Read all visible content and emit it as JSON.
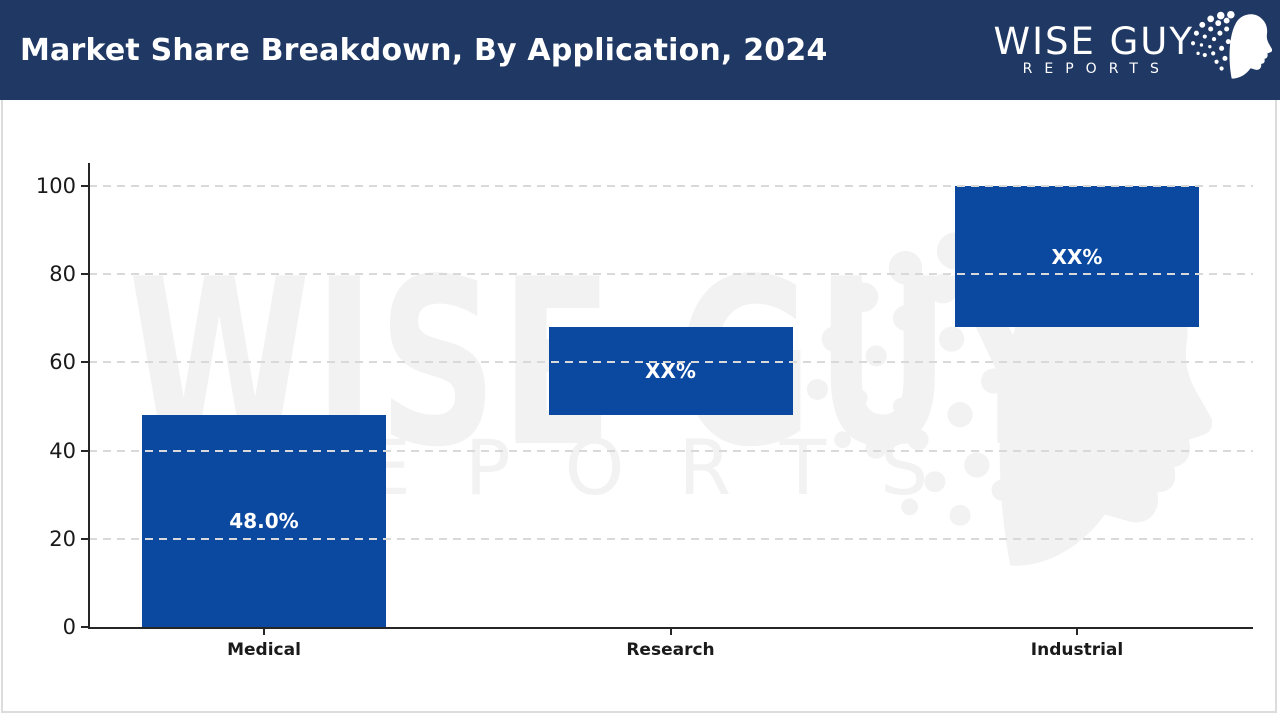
{
  "header": {
    "title": "Market Share Breakdown, By Application, 2024",
    "logo": {
      "line1": "WISE GUY",
      "line2": "REPORTS"
    }
  },
  "watermark": {
    "text": "WISE GUY",
    "subtext": "REPORTS"
  },
  "chart_data": {
    "type": "bar",
    "subtype": "waterfall",
    "title": "Market Share Breakdown, By Application, 2024",
    "categories": [
      "Medical",
      "Research",
      "Industrial"
    ],
    "series": [
      {
        "name": "Market share (%)",
        "segments": [
          {
            "category": "Medical",
            "from": 0,
            "to": 48,
            "label": "48.0%"
          },
          {
            "category": "Research",
            "from": 48,
            "to": 68,
            "label": "XX%"
          },
          {
            "category": "Industrial",
            "from": 68,
            "to": 100,
            "label": "XX%"
          }
        ]
      }
    ],
    "xlabel": "",
    "ylabel": "",
    "ylim": [
      0,
      100
    ],
    "yticks": [
      0,
      20,
      40,
      60,
      80,
      100
    ],
    "grid": "horizontal dashed",
    "legend": "none",
    "colors": {
      "bar": "#0b48a0",
      "bar_label": "#ffffff",
      "axis": "#262626",
      "grid": "#d9d9d9",
      "header_bg": "#1f3864",
      "watermark": "#f2f2f2"
    }
  }
}
